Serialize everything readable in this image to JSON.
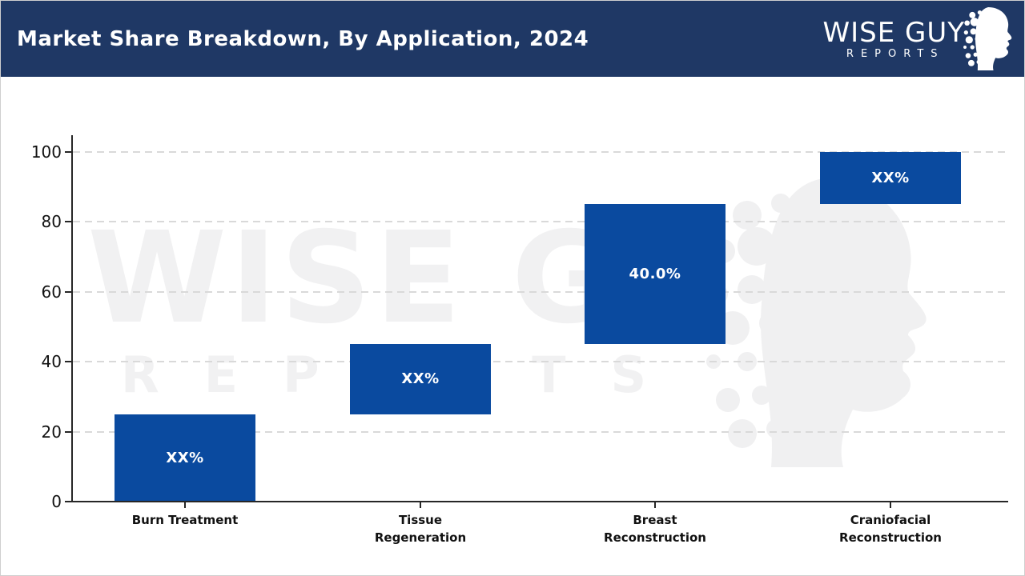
{
  "header": {
    "title": "Market Share Breakdown, By Application, 2024",
    "logo": {
      "brand": "WISE GUY",
      "sub": "REPORTS"
    }
  },
  "watermark": {
    "brand": "WISE GU",
    "sub": "REPORTS"
  },
  "chart_data": {
    "type": "bar",
    "variant": "floating-waterfall",
    "title": "Market Share Breakdown, By Application, 2024",
    "categories": [
      "Burn Treatment",
      "Tissue Regeneration",
      "Breast Reconstruction",
      "Craniofacial Reconstruction"
    ],
    "category_lines": [
      [
        "Burn Treatment"
      ],
      [
        "Tissue",
        "Regeneration"
      ],
      [
        "Breast",
        "Reconstruction"
      ],
      [
        "Craniofacial",
        "Reconstruction"
      ]
    ],
    "segments": [
      {
        "category": "Burn Treatment",
        "start": 0,
        "end": 25,
        "value": 25,
        "label": "XX%"
      },
      {
        "category": "Tissue Regeneration",
        "start": 25,
        "end": 45,
        "value": 20,
        "label": "XX%"
      },
      {
        "category": "Breast Reconstruction",
        "start": 45,
        "end": 85,
        "value": 40,
        "label": "40.0%"
      },
      {
        "category": "Craniofacial Reconstruction",
        "start": 85,
        "end": 100,
        "value": 15,
        "label": "XX%"
      }
    ],
    "xlabel": "",
    "ylabel": "",
    "yticks": [
      0,
      20,
      40,
      60,
      80,
      100
    ],
    "ylim": [
      0,
      104.5
    ],
    "grid": "horizontal-dashed",
    "legend": "none",
    "bar_color": "#0a4a9f",
    "bar_label_color": "#ffffff"
  }
}
